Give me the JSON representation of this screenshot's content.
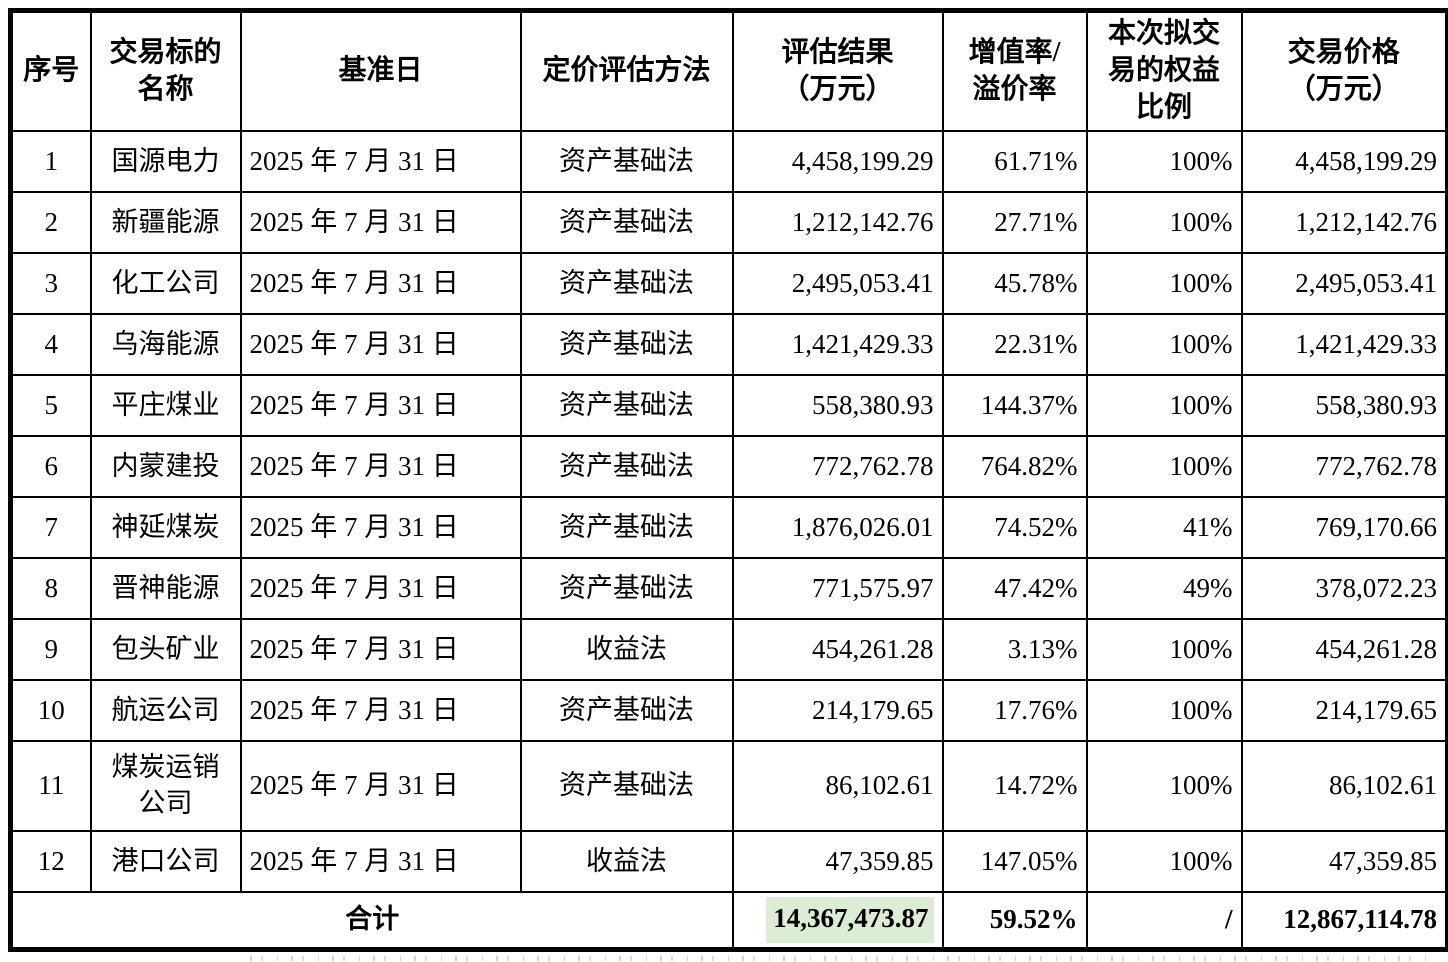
{
  "table": {
    "header": {
      "index": "序号",
      "name": "交易标的\n名称",
      "date": "基准日",
      "method": "定价评估方法",
      "result": "评估结果\n（万元）",
      "rate": "增值率/\n溢价率",
      "equity": "本次拟交\n易的权益\n比例",
      "price": "交易价格\n（万元）"
    },
    "rows": [
      {
        "index": "1",
        "name": "国源电力",
        "date": "2025 年 7 月 31 日",
        "method": "资产基础法",
        "result": "4,458,199.29",
        "rate": "61.71%",
        "equity": "100%",
        "price": "4,458,199.29"
      },
      {
        "index": "2",
        "name": "新疆能源",
        "date": "2025 年 7 月 31 日",
        "method": "资产基础法",
        "result": "1,212,142.76",
        "rate": "27.71%",
        "equity": "100%",
        "price": "1,212,142.76"
      },
      {
        "index": "3",
        "name": "化工公司",
        "date": "2025 年 7 月 31 日",
        "method": "资产基础法",
        "result": "2,495,053.41",
        "rate": "45.78%",
        "equity": "100%",
        "price": "2,495,053.41"
      },
      {
        "index": "4",
        "name": "乌海能源",
        "date": "2025 年 7 月 31 日",
        "method": "资产基础法",
        "result": "1,421,429.33",
        "rate": "22.31%",
        "equity": "100%",
        "price": "1,421,429.33"
      },
      {
        "index": "5",
        "name": "平庄煤业",
        "date": "2025 年 7 月 31 日",
        "method": "资产基础法",
        "result": "558,380.93",
        "rate": "144.37%",
        "equity": "100%",
        "price": "558,380.93"
      },
      {
        "index": "6",
        "name": "内蒙建投",
        "date": "2025 年 7 月 31 日",
        "method": "资产基础法",
        "result": "772,762.78",
        "rate": "764.82%",
        "equity": "100%",
        "price": "772,762.78"
      },
      {
        "index": "7",
        "name": "神延煤炭",
        "date": "2025 年 7 月 31 日",
        "method": "资产基础法",
        "result": "1,876,026.01",
        "rate": "74.52%",
        "equity": "41%",
        "price": "769,170.66"
      },
      {
        "index": "8",
        "name": "晋神能源",
        "date": "2025 年 7 月 31 日",
        "method": "资产基础法",
        "result": "771,575.97",
        "rate": "47.42%",
        "equity": "49%",
        "price": "378,072.23"
      },
      {
        "index": "9",
        "name": "包头矿业",
        "date": "2025 年 7 月 31 日",
        "method": "收益法",
        "result": "454,261.28",
        "rate": "3.13%",
        "equity": "100%",
        "price": "454,261.28"
      },
      {
        "index": "10",
        "name": "航运公司",
        "date": "2025 年 7 月 31 日",
        "method": "资产基础法",
        "result": "214,179.65",
        "rate": "17.76%",
        "equity": "100%",
        "price": "214,179.65"
      },
      {
        "index": "11",
        "name": "煤炭运销\n公司",
        "date": "2025 年 7 月 31 日",
        "method": "资产基础法",
        "result": "86,102.61",
        "rate": "14.72%",
        "equity": "100%",
        "price": "86,102.61",
        "tall": true
      },
      {
        "index": "12",
        "name": "港口公司",
        "date": "2025 年 7 月 31 日",
        "method": "收益法",
        "result": "47,359.85",
        "rate": "147.05%",
        "equity": "100%",
        "price": "47,359.85"
      }
    ],
    "total": {
      "label": "合计",
      "result": "14,367,473.87",
      "rate": "59.52%",
      "equity": "/",
      "price": "12,867,114.78",
      "highlight_color": "#dcecd5"
    }
  }
}
